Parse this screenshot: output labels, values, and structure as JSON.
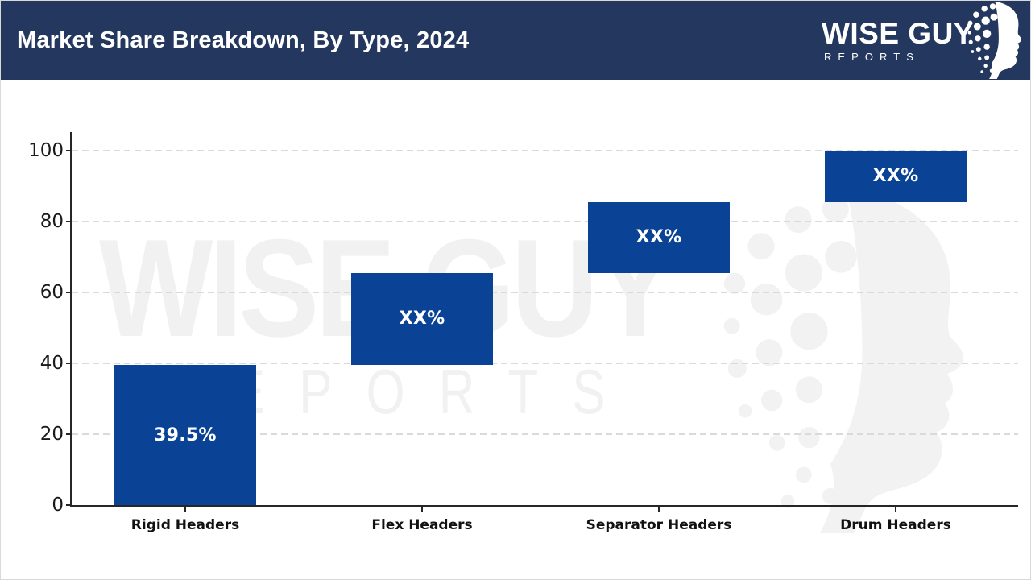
{
  "page": {
    "background": "#ffffff",
    "border_color": "#d9d9d9"
  },
  "header": {
    "background": "#23375f",
    "title": "Market Share Breakdown, By Type, 2024",
    "logo": {
      "name": "WISE GUY",
      "sub": "REPORTS"
    }
  },
  "watermark": {
    "line1": "WISE GUY",
    "line2": "REPORTS"
  },
  "chart_data": {
    "type": "bar",
    "variant": "waterfall",
    "title": "Market Share Breakdown, By Type, 2024",
    "categories": [
      "Rigid Headers",
      "Flex Headers",
      "Separator Headers",
      "Drum Headers"
    ],
    "segments": [
      {
        "category": "Rigid Headers",
        "start": 0,
        "end": 39.5,
        "label": "39.5%"
      },
      {
        "category": "Flex Headers",
        "start": 39.5,
        "end": 65.5,
        "label": "XX%"
      },
      {
        "category": "Separator Headers",
        "start": 65.5,
        "end": 85.5,
        "label": "XX%"
      },
      {
        "category": "Drum Headers",
        "start": 85.5,
        "end": 100,
        "label": "XX%"
      }
    ],
    "yticks": [
      0,
      20,
      40,
      60,
      80,
      100
    ],
    "ylim": [
      0,
      105
    ],
    "ylabel": "",
    "xlabel": "",
    "bar_color": "#0a4296",
    "value_label_color": "#ffffff",
    "grid": "horizontal dashed",
    "gridline_color": "#dadada",
    "axis_color": "#262626",
    "legend": null
  }
}
